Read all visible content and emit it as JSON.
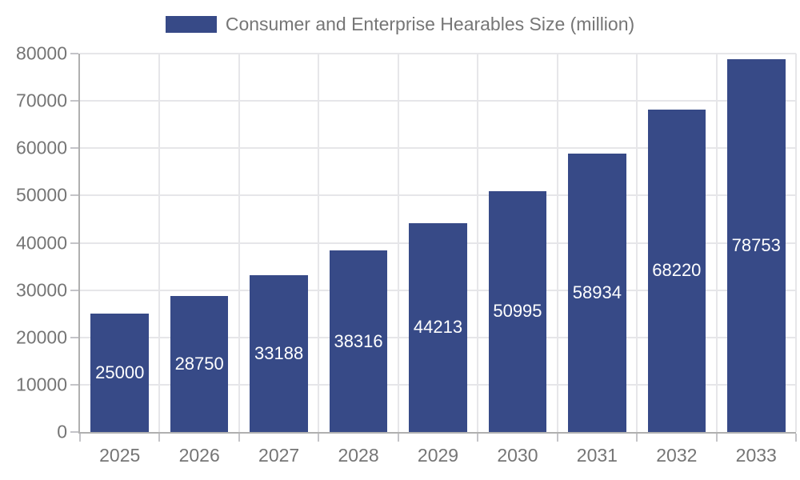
{
  "legend": {
    "label": "Consumer and Enterprise Hearables Size (million)"
  },
  "colors": {
    "bar": "#374a87",
    "grid": "#e6e6e9",
    "axis": "#b0b0b0",
    "tick": "#c4c4c8",
    "tick_text": "#757575",
    "value_text": "#ffffff",
    "background": "#ffffff"
  },
  "chart_data": {
    "type": "bar",
    "title": "Consumer and Enterprise Hearables Size (million)",
    "categories": [
      "2025",
      "2026",
      "2027",
      "2028",
      "2029",
      "2030",
      "2031",
      "2032",
      "2033"
    ],
    "values": [
      25000,
      28750,
      33188,
      38316,
      44213,
      50995,
      58934,
      68220,
      78753
    ],
    "value_labels": [
      "25000",
      "28750",
      "33188",
      "38316",
      "44213",
      "50995",
      "58934",
      "68220",
      "78753"
    ],
    "xlabel": "",
    "ylabel": "",
    "ylim": [
      0,
      80000
    ],
    "yticks": [
      0,
      10000,
      20000,
      30000,
      40000,
      50000,
      60000,
      70000,
      80000
    ],
    "ytick_labels": [
      "0",
      "10000",
      "20000",
      "30000",
      "40000",
      "50000",
      "60000",
      "70000",
      "80000"
    ],
    "grid": true,
    "legend_position": "top-center",
    "bar_width_fraction": 0.73,
    "value_label_position": "center-of-bar"
  }
}
